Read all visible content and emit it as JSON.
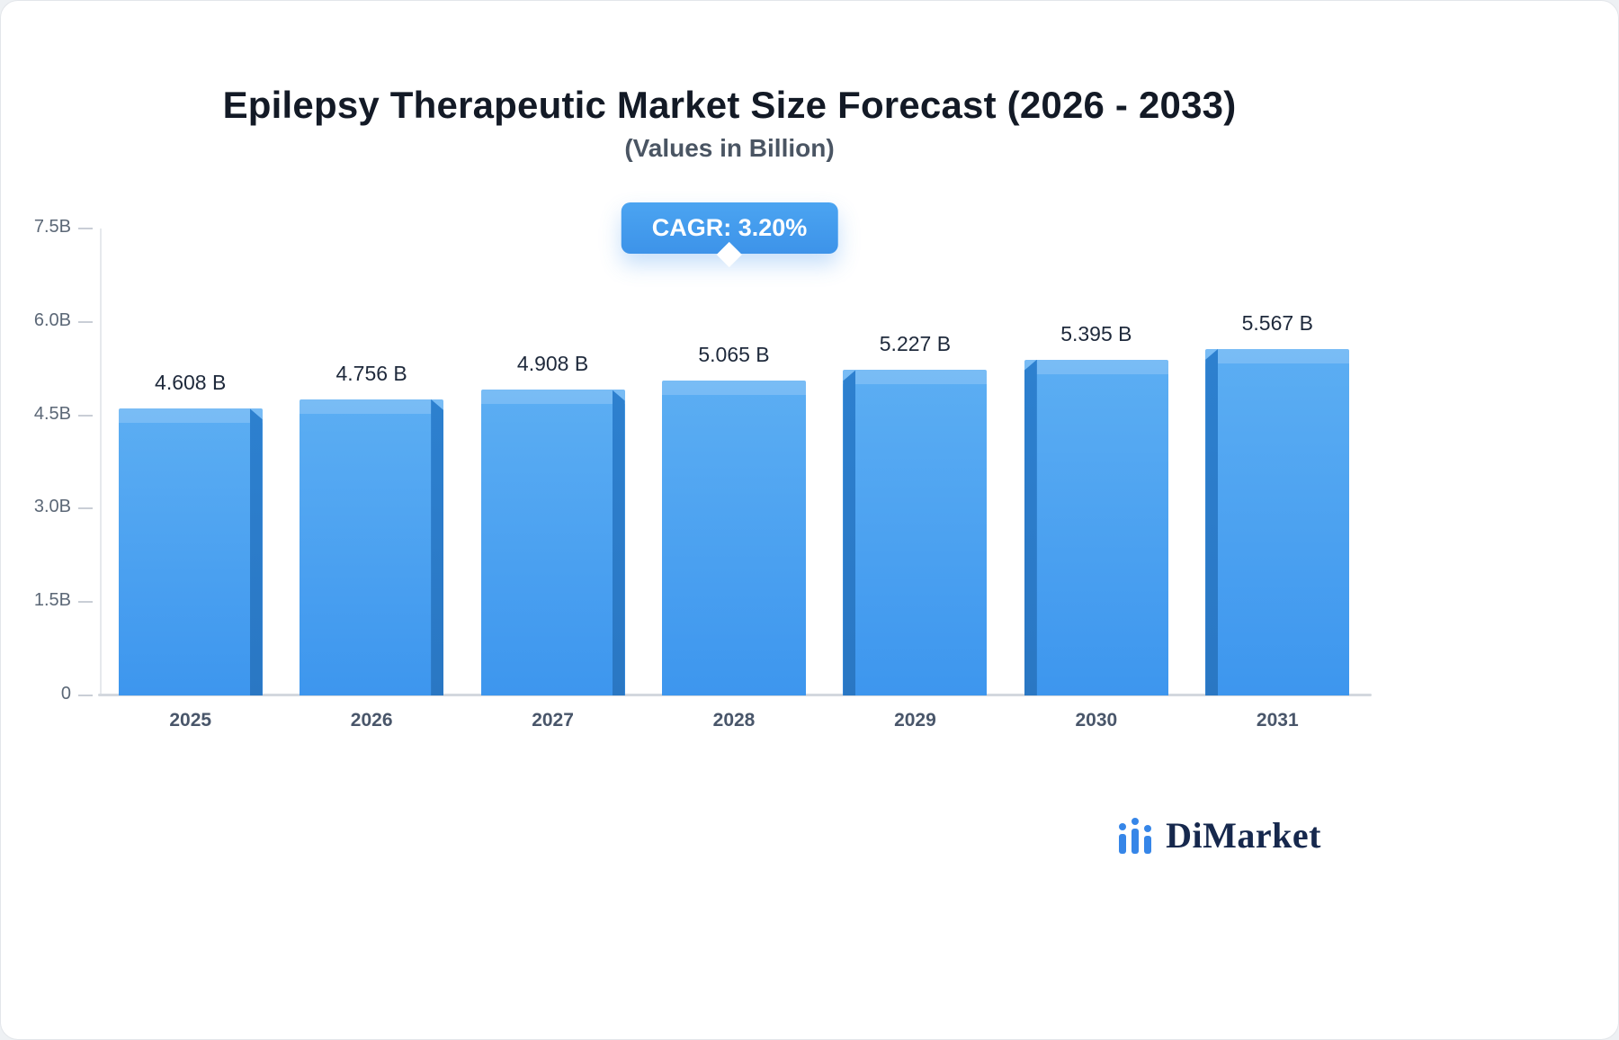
{
  "header": {
    "title": "Epilepsy Therapeutic Market Size Forecast (2026 - 2033)",
    "subtitle": "(Values in Billion)"
  },
  "badge": {
    "label": "CAGR: 3.20%"
  },
  "chart_data": {
    "type": "bar",
    "categories": [
      "2025",
      "2026",
      "2027",
      "2028",
      "2029",
      "2030",
      "2031"
    ],
    "values": [
      4.608,
      4.756,
      4.908,
      5.065,
      5.227,
      5.395,
      5.567
    ],
    "value_labels": [
      "4.608 B",
      "4.756 B",
      "4.908 B",
      "5.065 B",
      "5.227 B",
      "5.395 B",
      "5.567 B"
    ],
    "title": "Epilepsy Therapeutic Market Size Forecast (2026 - 2033)",
    "subtitle": "(Values in Billion)",
    "xlabel": "",
    "ylabel": "",
    "ylim": [
      0,
      7.5
    ],
    "ytick_labels": [
      "7.5B",
      "6.0B",
      "4.5B",
      "3.0B",
      "1.5B",
      "0"
    ],
    "ytick_values": [
      7.5,
      6.0,
      4.5,
      3.0,
      1.5,
      0
    ],
    "grid": false,
    "legend": "none",
    "annotation": "CAGR: 3.20%"
  },
  "colors": {
    "bar_top": "#5caef3",
    "bar_bottom": "#3d96ee",
    "bar_side_top": "#2d80cf",
    "bar_side_bottom": "#2a77c3",
    "badge_blue": "#42a0ec",
    "logo_navy": "#16284d",
    "logo_blue": "#3686e8"
  },
  "logo": {
    "text": "DiMarket",
    "icon": "bar-chart-dots-icon"
  }
}
